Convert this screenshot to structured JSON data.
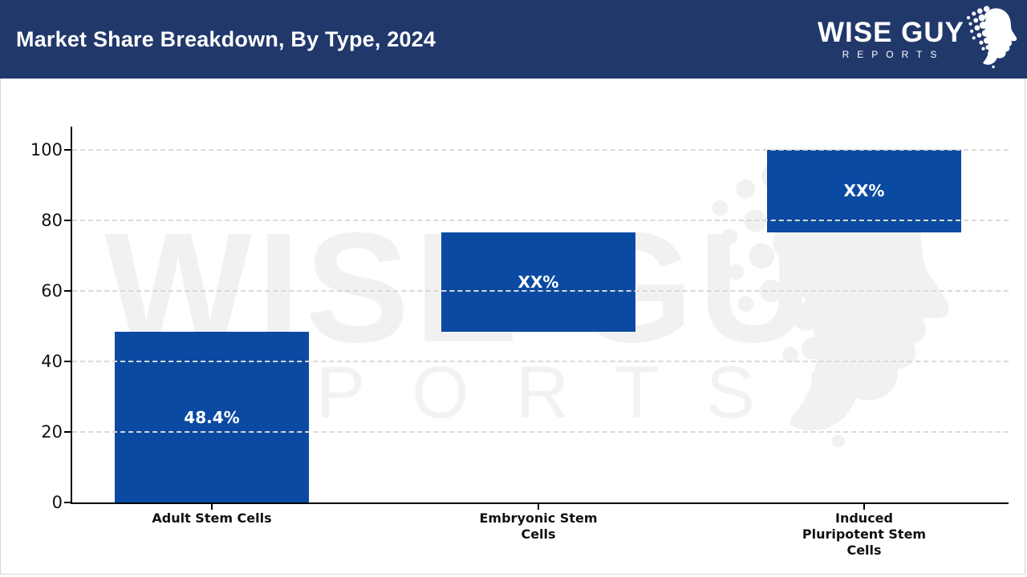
{
  "header": {
    "title": "Market Share Breakdown, By Type, 2024",
    "logo": {
      "name": "WISE GUY",
      "sub": "REPORTS"
    }
  },
  "watermark": {
    "line1": "WISE GUY",
    "line2": "REPORTS"
  },
  "chart_data": {
    "type": "bar",
    "subtype": "stacked-waterfall",
    "title": "Market Share Breakdown, By Type, 2024",
    "categories": [
      "Adult Stem Cells",
      "Embryonic Stem\nCells",
      "Induced\nPluripotent Stem\nCells"
    ],
    "segments": [
      {
        "category": "Adult Stem Cells",
        "base": 0,
        "top": 48.4,
        "label": "48.4%"
      },
      {
        "category": "Embryonic Stem Cells",
        "base": 48.4,
        "top": 76.6,
        "label": "XX%"
      },
      {
        "category": "Induced Pluripotent Stem Cells",
        "base": 76.6,
        "top": 100,
        "label": "XX%"
      }
    ],
    "y_ticks": [
      0,
      20,
      40,
      60,
      80,
      100
    ],
    "ylim": [
      0,
      105
    ],
    "xlabel": "",
    "ylabel": "",
    "grid": true,
    "grid_style": "dashed",
    "gridlines_above_bars": true,
    "colors": {
      "bar": "#0b4aa2",
      "grid": "#d9d9d9",
      "axis": "#000000",
      "header_bg": "#21386b",
      "bar_label_text": "#ffffff",
      "watermark": "#f1f1f1"
    }
  }
}
